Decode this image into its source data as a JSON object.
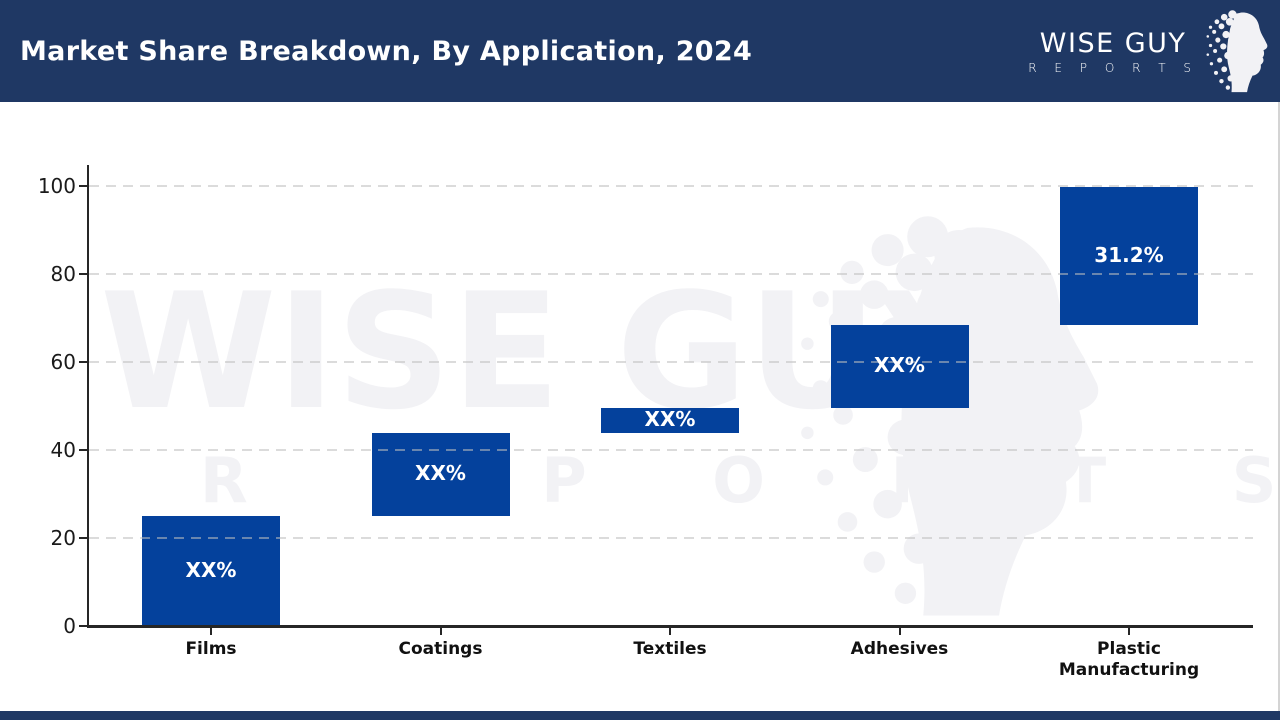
{
  "header": {
    "title": "Market Share Breakdown, By Application, 2024",
    "logo_line1": "WISE GUY",
    "logo_line2": "R E P O R T S",
    "bg_color": "#1f3864"
  },
  "watermark": {
    "line1": "WISE GUY",
    "line2": "R E P O R T S"
  },
  "chart_data": {
    "type": "bar",
    "subtype": "waterfall",
    "title": "Market Share Breakdown, By Application, 2024",
    "categories": [
      "Films",
      "Coatings",
      "Textiles",
      "Adhesives",
      "Plastic Manufacturing"
    ],
    "segments": [
      {
        "category": "Films",
        "start": 0,
        "end": 25,
        "label": "XX%"
      },
      {
        "category": "Coatings",
        "start": 25,
        "end": 43.9,
        "label": "XX%"
      },
      {
        "category": "Textiles",
        "start": 43.9,
        "end": 49.6,
        "label": "XX%"
      },
      {
        "category": "Adhesives",
        "start": 49.6,
        "end": 68.5,
        "label": "XX%"
      },
      {
        "category": "Plastic Manufacturing",
        "start": 68.5,
        "end": 99.7,
        "label": "31.2%"
      }
    ],
    "yticks": [
      0,
      20,
      40,
      60,
      80,
      100
    ],
    "ylim": [
      0,
      104
    ],
    "xlabel": "",
    "ylabel": "",
    "grid": true,
    "grid_style": "dashed",
    "legend": false,
    "bar_color": "#04419c",
    "axis_color": "#262626"
  }
}
